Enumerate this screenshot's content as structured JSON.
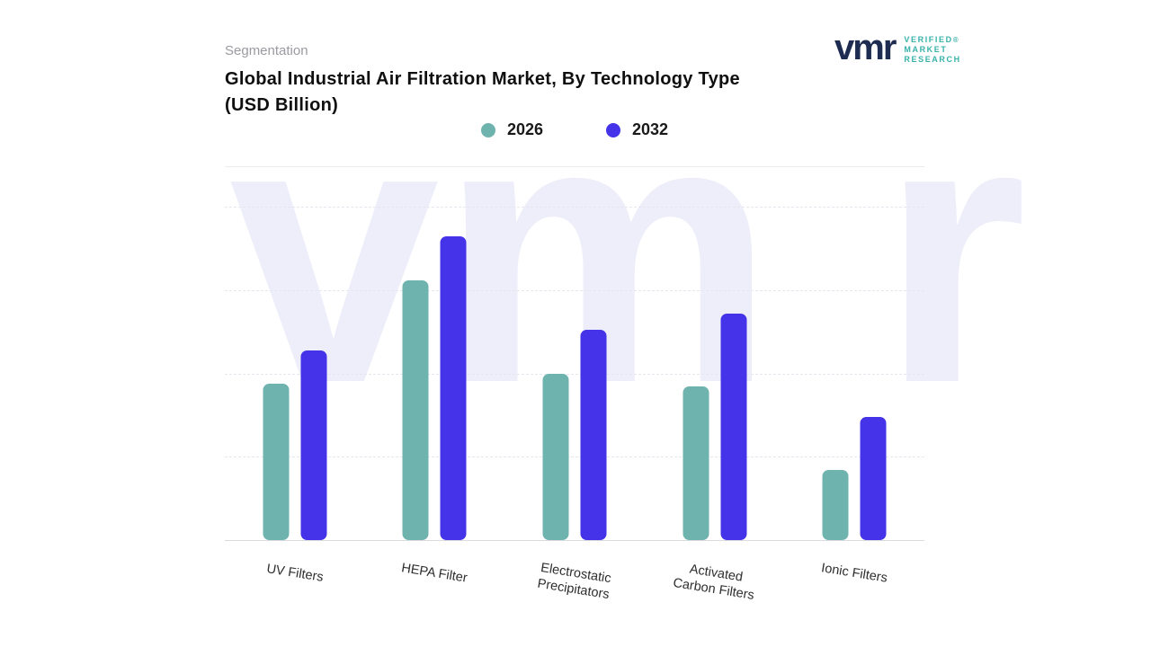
{
  "header": {
    "eyebrow": "Segmentation",
    "title_line1": "Global Industrial Air Filtration Market, By Technology Type",
    "title_line2": "(USD Billion)"
  },
  "logo": {
    "mark": "vmr",
    "registered_symbol": "®",
    "name_lines": [
      "VERIFIED",
      "MARKET",
      "RESEARCH"
    ],
    "mark_color": "#1e2c52",
    "text_color": "#38b2aa"
  },
  "watermark_text": "vm r",
  "legend": {
    "items": [
      {
        "label": "2026",
        "color": "#6FB3AF"
      },
      {
        "label": "2032",
        "color": "#4433E8"
      }
    ]
  },
  "chart_data": {
    "type": "bar",
    "title": "Global Industrial Air Filtration Market, By Technology Type (USD Billion)",
    "categories": [
      "UV Filters",
      "HEPA Filter",
      "Electrostatic\nPrecipitators",
      "Activated\nCarbon Filters",
      "Ionic Filters"
    ],
    "series": [
      {
        "name": "2026",
        "color": "#6FB3AF",
        "values": [
          47,
          78,
          50,
          46,
          21
        ]
      },
      {
        "name": "2032",
        "color": "#4433E8",
        "values": [
          57,
          91,
          63,
          68,
          37
        ]
      }
    ],
    "xlabel": "",
    "ylabel": "",
    "ylim": [
      0,
      100
    ],
    "value_axis_visible": false,
    "value_note": "No numeric axis shown in source; values are estimated relative bar heights (% of plot height), units USD Billion",
    "gridlines": {
      "style": "dashed",
      "orientation": "horizontal",
      "count": 4
    },
    "legend_position": "top-center",
    "bar_corner_radius_px": 7
  }
}
